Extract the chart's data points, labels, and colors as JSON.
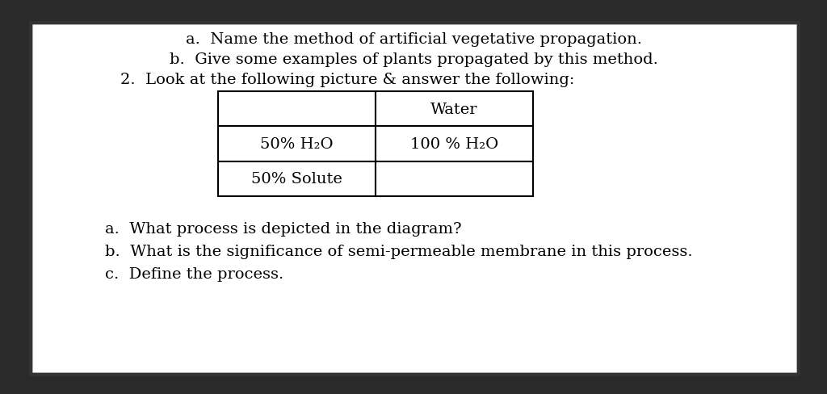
{
  "outer_bg": "#2a2a2a",
  "inner_bg": "#ffffff",
  "border_color": "#000000",
  "text_color": "#000000",
  "line1": "a.  Name the method of artificial vegetative propagation.",
  "line2": "b.  Give some examples of plants propagated by this method.",
  "line3": "2.  Look at the following picture & answer the following:",
  "table_cells": [
    [
      "",
      "Water"
    ],
    [
      "50% H₂O",
      "100 % H₂O"
    ],
    [
      "50% Solute",
      ""
    ]
  ],
  "bottom_lines": [
    "a.  What process is depicted in the diagram?",
    "b.  What is the significance of semi-permeable membrane in this process.",
    "c.  Define the process."
  ],
  "fontsize": 14,
  "fontfamily": "DejaVu Serif"
}
